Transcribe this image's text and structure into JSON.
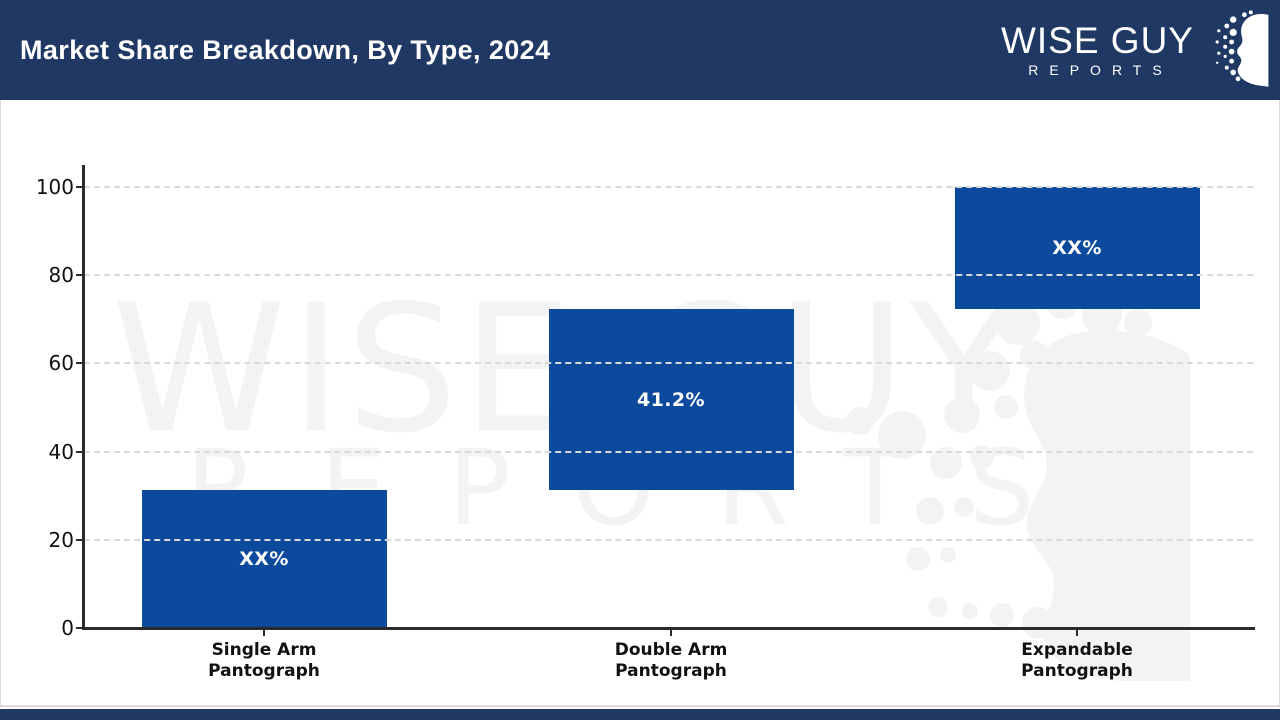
{
  "header": {
    "title": "Market Share Breakdown, By Type, 2024",
    "logo": {
      "primary": "WISE GUY",
      "secondary": "REPORTS"
    }
  },
  "watermark": {
    "primary": "WISE GUY",
    "secondary": "REPORTS"
  },
  "chart_data": {
    "type": "bar",
    "subtype": "floating-stacked-segments",
    "title": "Market Share Breakdown, By Type, 2024",
    "categories": [
      "Single Arm\nPantograph",
      "Double Arm\nPantograph",
      "Expandable\nPantograph"
    ],
    "segments": [
      {
        "category": "Single Arm Pantograph",
        "from": 0,
        "to": 31.2,
        "label": "XX%"
      },
      {
        "category": "Double Arm Pantograph",
        "from": 31.2,
        "to": 72.4,
        "label": "41.2%"
      },
      {
        "category": "Expandable Pantograph",
        "from": 72.4,
        "to": 100,
        "label": "XX%"
      }
    ],
    "ylim": [
      0,
      100
    ],
    "yticks": [
      0,
      20,
      40,
      60,
      80,
      100
    ],
    "grid": true,
    "legend": false,
    "bar_color": "#0c4a9e"
  },
  "colors": {
    "header_bg": "#1f3864",
    "footer_bg": "#1f3864",
    "bar": "#0c4a9e",
    "grid": "#d9d9d9",
    "axis": "#2b2b2b",
    "watermark": "#f3f3f3",
    "title_text": "#ffffff"
  }
}
